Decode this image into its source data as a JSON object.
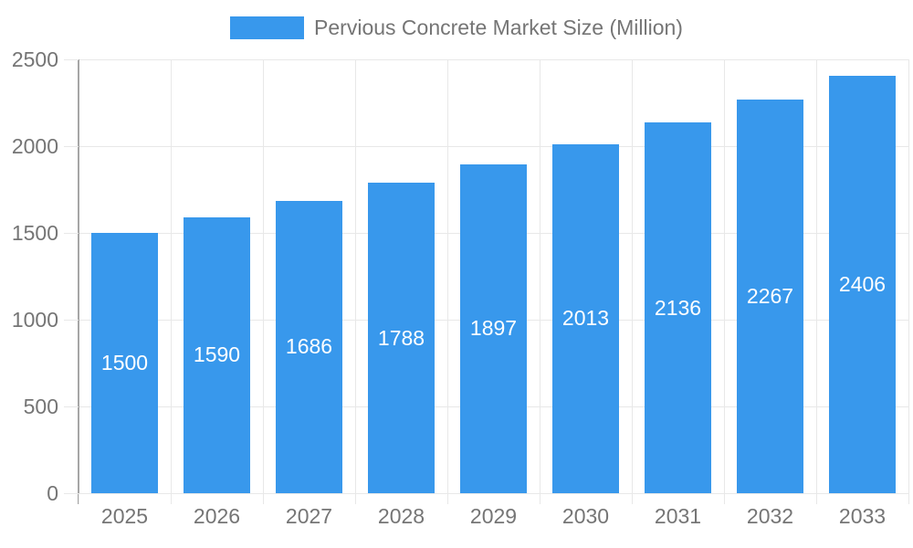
{
  "chart_data": {
    "type": "bar",
    "title": "",
    "series_name": "Pervious Concrete Market Size (Million)",
    "categories": [
      "2025",
      "2026",
      "2027",
      "2028",
      "2029",
      "2030",
      "2031",
      "2032",
      "2033"
    ],
    "values": [
      1500,
      1590,
      1686,
      1788,
      1897,
      2013,
      2136,
      2267,
      2406
    ],
    "xlabel": "",
    "ylabel": "",
    "ylim": [
      0,
      2500
    ],
    "yticks": [
      0,
      500,
      1000,
      1500,
      2000,
      2500
    ],
    "grid": true,
    "legend_position": "top-center",
    "colors": {
      "bar": "#3898EC",
      "grid": "#E8E8E8",
      "axis_line": "#A6A6A6",
      "axis_text": "#757575",
      "value_label": "#FFFFFF",
      "background": "#FFFFFF"
    }
  }
}
